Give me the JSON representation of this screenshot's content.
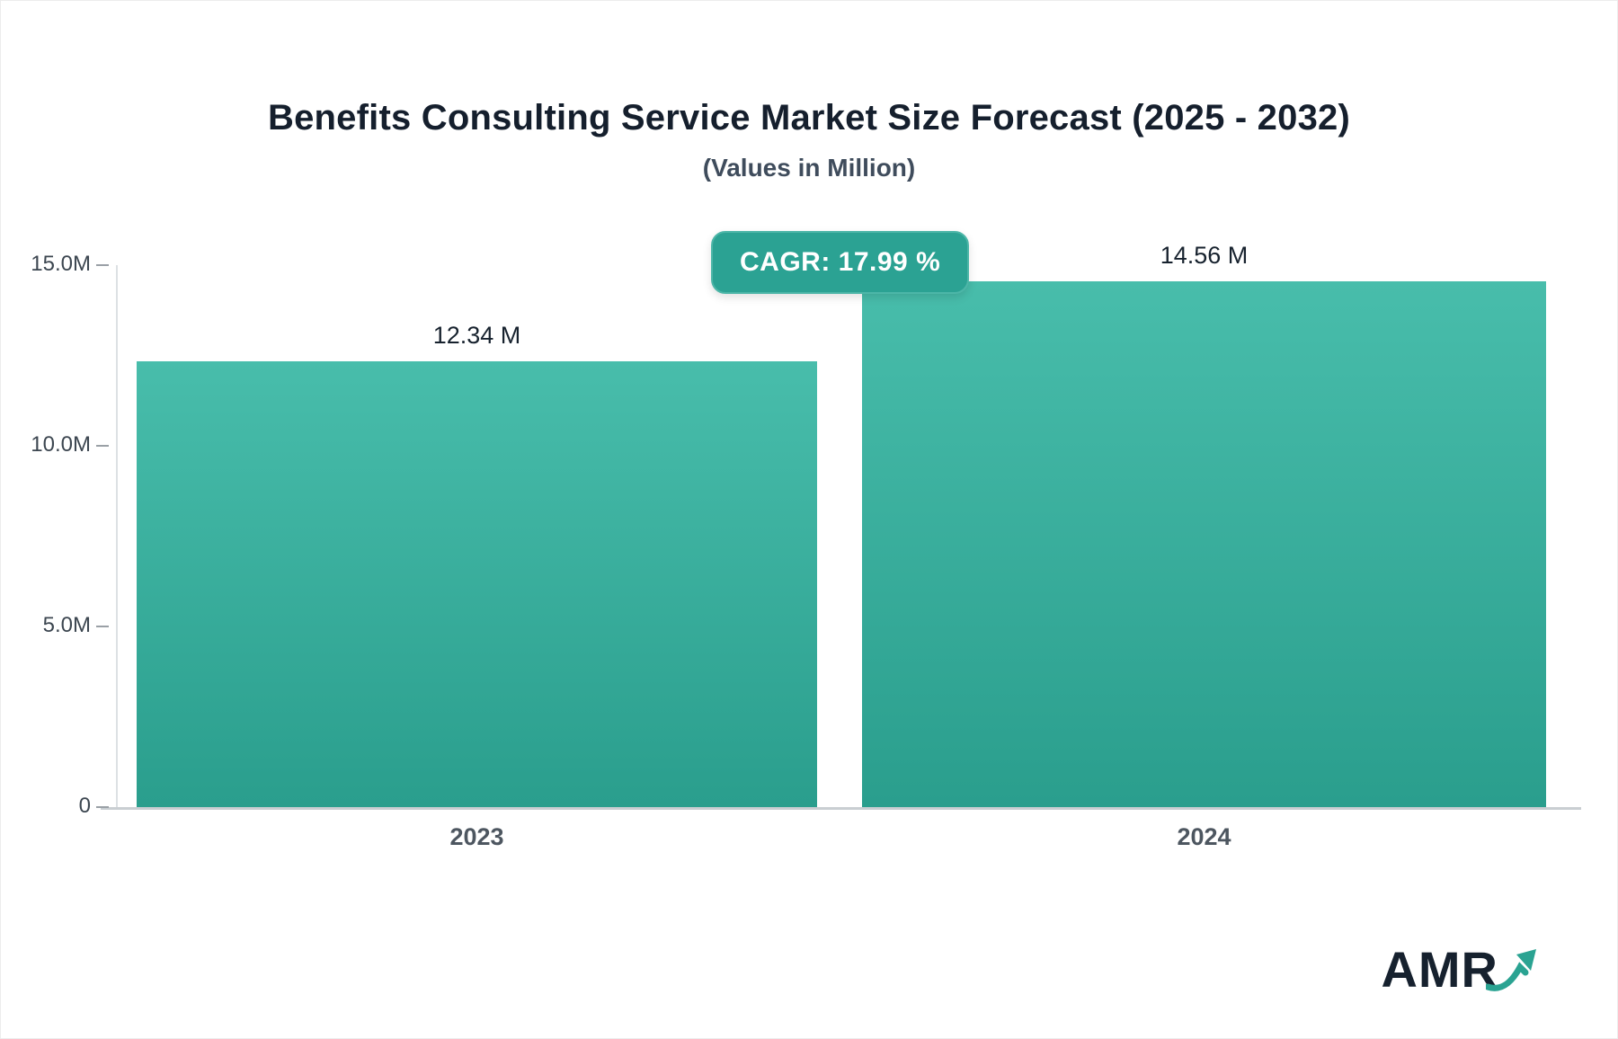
{
  "title": "Benefits Consulting Service Market Size Forecast (2025 - 2032)",
  "subtitle": "(Values in Million)",
  "cagr_badge": "CAGR: 17.99 %",
  "logo_text": "AMR",
  "colors": {
    "bar_gradient_top": "#48bdab",
    "bar_gradient_bottom": "#2a9e8d",
    "badge_bg": "#2ba293",
    "title_text": "#151f2d",
    "axis_text": "#3c4650",
    "logo_arrow": "#2aa392"
  },
  "chart_data": {
    "type": "bar",
    "categories": [
      "2023",
      "2024"
    ],
    "values": [
      12.34,
      14.56
    ],
    "value_labels": [
      "12.34 M",
      "14.56 M"
    ],
    "title": "Benefits Consulting Service Market Size Forecast (2025 - 2032)",
    "subtitle": "(Values in Million)",
    "annotations": [
      "CAGR: 17.99 %"
    ],
    "unit": "Million",
    "xlabel": "",
    "ylabel": "",
    "ylim": [
      0,
      15
    ],
    "y_ticks": [
      "0",
      "5.0M",
      "10.0M",
      "15.0M"
    ],
    "y_tick_values": [
      0,
      5,
      10,
      15
    ],
    "grid": false,
    "legend": false
  }
}
